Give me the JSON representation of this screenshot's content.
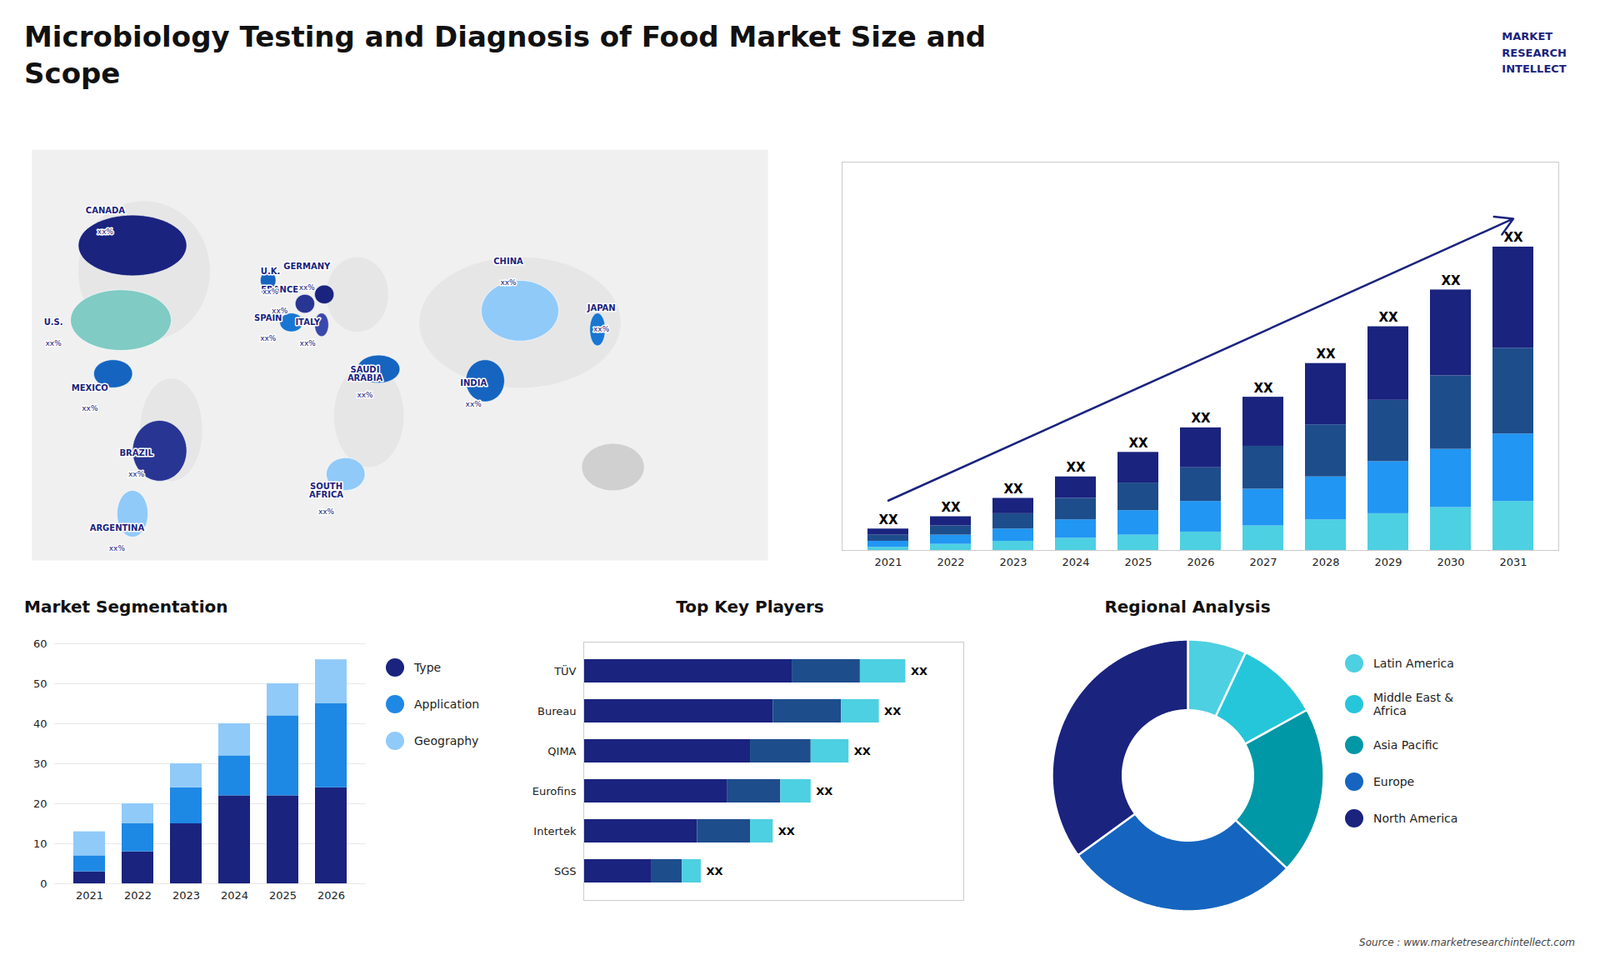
{
  "title": "Microbiology Testing and Diagnosis of Food Market Size and\nScope",
  "annotations": [
    "MARKET\nRESEARCH\nINTELLECT"
  ],
  "caption": "Source : www.marketresearchintellect.com",
  "chart_data": [
    {
      "type": "map",
      "categories": [
        "CANADA",
        "U.S.",
        "MEXICO",
        "BRAZIL",
        "ARGENTINA",
        "U.K.",
        "FRANCE",
        "SPAIN",
        "GERMANY",
        "ITALY",
        "SAUDI\nARABIA",
        "SOUTH\nAFRICA",
        "CHINA",
        "INDIA",
        "JAPAN"
      ],
      "value_labels": [
        "xx%",
        "xx%",
        "xx%",
        "xx%",
        "xx%",
        "xx%",
        "xx%",
        "xx%",
        "xx%",
        "xx%",
        "xx%",
        "xx%",
        "xx%",
        "xx%",
        "xx%"
      ],
      "colors": [
        "#1a237e",
        "#80cbc4",
        "#1565c0",
        "#283593",
        "#90caf9",
        "#1565c0",
        "#283593",
        "#1976d2",
        "#1a237e",
        "#3949ab",
        "#1565c0",
        "#90caf9",
        "#90caf9",
        "#1565c0",
        "#1976d2"
      ]
    },
    {
      "type": "bar",
      "stacked": true,
      "categories": [
        "2021",
        "2022",
        "2023",
        "2024",
        "2025",
        "2026",
        "2027",
        "2028",
        "2029",
        "2030",
        "2031"
      ],
      "series": [
        {
          "color": "#4dd0e1",
          "values": [
            1,
            2,
            3,
            4,
            5,
            6,
            8,
            10,
            12,
            14,
            16
          ]
        },
        {
          "color": "#2196f3",
          "values": [
            2,
            3,
            4,
            6,
            8,
            10,
            12,
            14,
            17,
            19,
            22
          ]
        },
        {
          "color": "#1e4d8c",
          "values": [
            2,
            3,
            5,
            7,
            9,
            11,
            14,
            17,
            20,
            24,
            28
          ]
        },
        {
          "color": "#1a237e",
          "values": [
            2,
            3,
            5,
            7,
            10,
            13,
            16,
            20,
            24,
            28,
            33
          ]
        }
      ],
      "ylim": [
        0,
        126.72
      ],
      "tick_labels": "x",
      "annotations": [
        {
          "x": "2021",
          "text": "XX"
        },
        {
          "x": "2022",
          "text": "XX"
        },
        {
          "x": "2023",
          "text": "XX"
        },
        {
          "x": "2024",
          "text": "XX"
        },
        {
          "x": "2025",
          "text": "XX"
        },
        {
          "x": "2026",
          "text": "XX"
        },
        {
          "x": "2027",
          "text": "XX"
        },
        {
          "x": "2028",
          "text": "XX"
        },
        {
          "x": "2029",
          "text": "XX"
        },
        {
          "x": "2030",
          "text": "XX"
        },
        {
          "x": "2031",
          "text": "XX"
        }
      ]
    },
    {
      "type": "bar",
      "title": "Market Segmentation",
      "stacked": true,
      "categories": [
        "2021",
        "2022",
        "2023",
        "2024",
        "2025",
        "2026"
      ],
      "series": [
        {
          "name": "Type",
          "color": "#1a237e",
          "values": [
            3,
            8,
            15,
            22,
            22,
            24
          ]
        },
        {
          "name": "Application",
          "color": "#1e88e5",
          "values": [
            4,
            7,
            9,
            10,
            20,
            21
          ]
        },
        {
          "name": "Geography",
          "color": "#90caf9",
          "values": [
            6,
            5,
            6,
            8,
            8,
            11
          ]
        }
      ],
      "ylim": [
        0,
        60
      ],
      "yticks": [
        0,
        10,
        20,
        30,
        40,
        50,
        60
      ],
      "grid": true,
      "legend": "right"
    },
    {
      "type": "bar",
      "title": "Top Key Players",
      "orientation": "horizontal",
      "stacked": true,
      "categories": [
        "TÜV",
        "Bureau",
        "QIMA",
        "Eurofins",
        "Intertek",
        "SGS"
      ],
      "series": [
        {
          "color": "#1a237e",
          "values": [
            55,
            50,
            44,
            38,
            30,
            18
          ]
        },
        {
          "color": "#1e4d8c",
          "values": [
            18,
            18,
            16,
            14,
            14,
            8
          ]
        },
        {
          "color": "#4dd0e1",
          "values": [
            12,
            10,
            10,
            8,
            6,
            5
          ]
        }
      ],
      "xlim": [
        0,
        100.3
      ],
      "tick_labels": "y",
      "annotations": [
        {
          "y": "TÜV",
          "text": "XX"
        },
        {
          "y": "Bureau",
          "text": "XX"
        },
        {
          "y": "QIMA",
          "text": "XX"
        },
        {
          "y": "Eurofins",
          "text": "XX"
        },
        {
          "y": "Intertek",
          "text": "XX"
        },
        {
          "y": "SGS",
          "text": "XX"
        }
      ]
    },
    {
      "type": "donut",
      "title": "Regional Analysis",
      "categories": [
        "Latin America",
        "Middle East &\nAfrica",
        "Asia Pacific",
        "Europe",
        "North America"
      ],
      "values": [
        7,
        10,
        20,
        28,
        35
      ],
      "colors": [
        "#4dd0e1",
        "#26c6da",
        "#0097a7",
        "#1565c0",
        "#1a237e"
      ],
      "legend": "right"
    }
  ]
}
